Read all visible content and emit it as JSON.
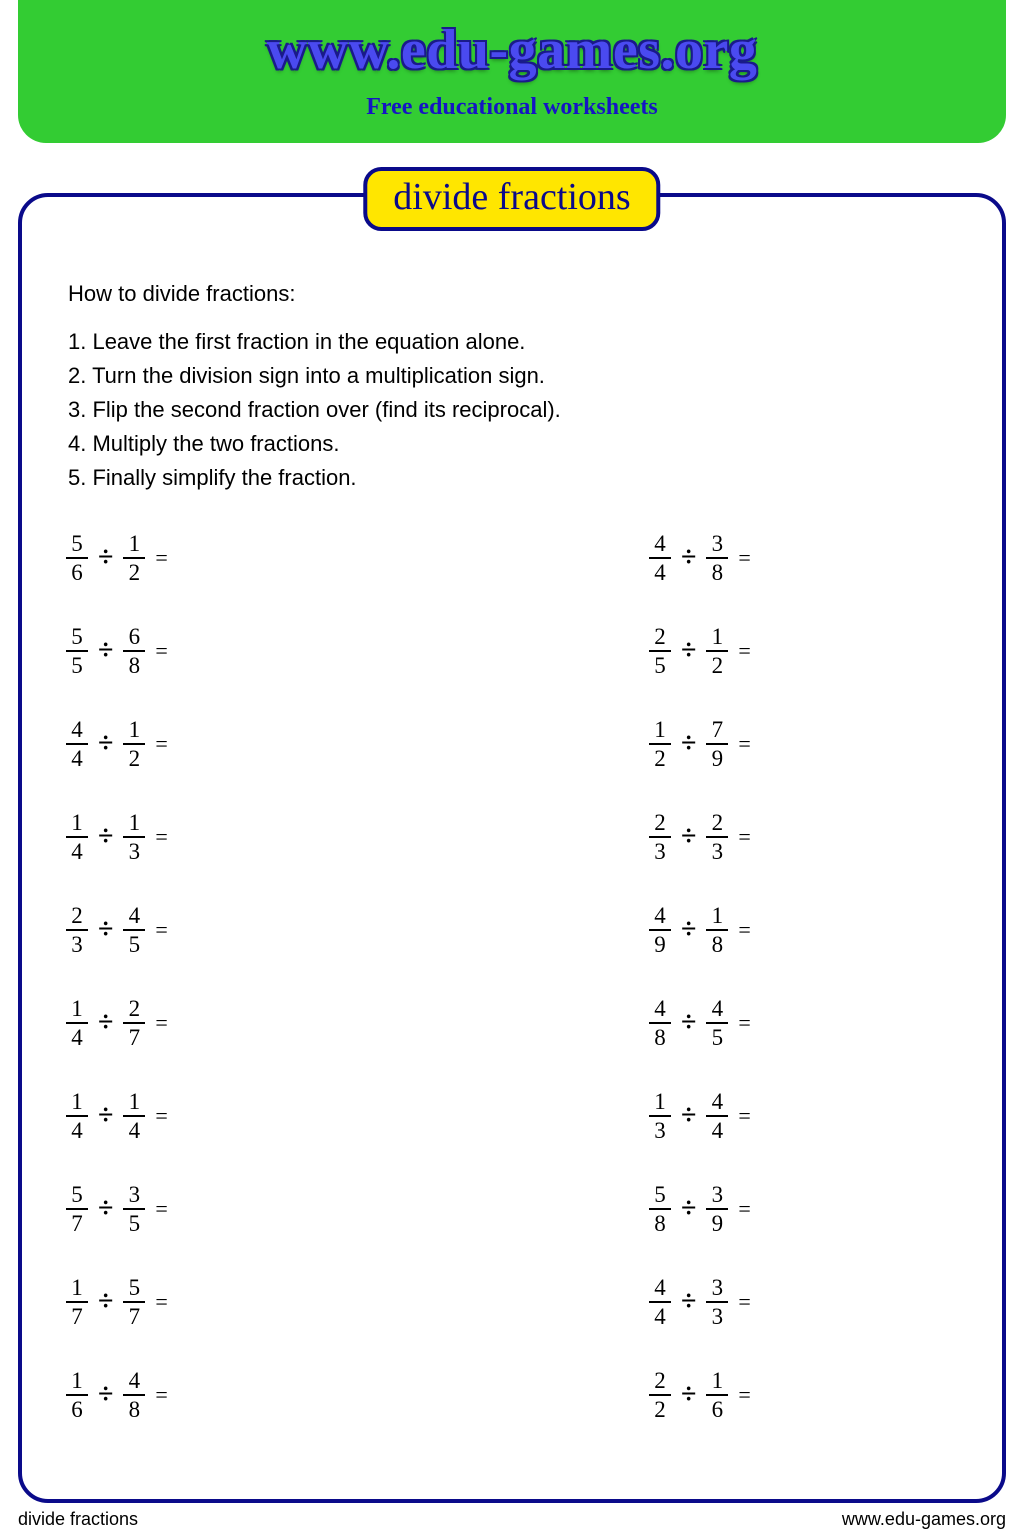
{
  "header": {
    "url": "www.edu-games.org",
    "subtitle": "Free educational worksheets",
    "bg_color": "#33cc33",
    "url_color": "#4a4af0",
    "sub_color": "#1515c4"
  },
  "worksheet": {
    "title": "divide fractions",
    "title_bg": "#ffe600",
    "border_color": "#0a0a8a",
    "instructions_heading": "How to divide fractions:",
    "instructions": [
      "1. Leave the first fraction in the equation alone.",
      "2. Turn the division sign into a multiplication sign.",
      "3. Flip the second fraction over (find its reciprocal).",
      "4. Multiply the two fractions.",
      "5. Finally simplify the fraction."
    ],
    "operator": "÷",
    "equals": "=",
    "problems_left": [
      {
        "a_num": "5",
        "a_den": "6",
        "b_num": "1",
        "b_den": "2"
      },
      {
        "a_num": "5",
        "a_den": "5",
        "b_num": "6",
        "b_den": "8"
      },
      {
        "a_num": "4",
        "a_den": "4",
        "b_num": "1",
        "b_den": "2"
      },
      {
        "a_num": "1",
        "a_den": "4",
        "b_num": "1",
        "b_den": "3"
      },
      {
        "a_num": "2",
        "a_den": "3",
        "b_num": "4",
        "b_den": "5"
      },
      {
        "a_num": "1",
        "a_den": "4",
        "b_num": "2",
        "b_den": "7"
      },
      {
        "a_num": "1",
        "a_den": "4",
        "b_num": "1",
        "b_den": "4"
      },
      {
        "a_num": "5",
        "a_den": "7",
        "b_num": "3",
        "b_den": "5"
      },
      {
        "a_num": "1",
        "a_den": "7",
        "b_num": "5",
        "b_den": "7"
      },
      {
        "a_num": "1",
        "a_den": "6",
        "b_num": "4",
        "b_den": "8"
      }
    ],
    "problems_right": [
      {
        "a_num": "4",
        "a_den": "4",
        "b_num": "3",
        "b_den": "8"
      },
      {
        "a_num": "2",
        "a_den": "5",
        "b_num": "1",
        "b_den": "2"
      },
      {
        "a_num": "1",
        "a_den": "2",
        "b_num": "7",
        "b_den": "9"
      },
      {
        "a_num": "2",
        "a_den": "3",
        "b_num": "2",
        "b_den": "3"
      },
      {
        "a_num": "4",
        "a_den": "9",
        "b_num": "1",
        "b_den": "8"
      },
      {
        "a_num": "4",
        "a_den": "8",
        "b_num": "4",
        "b_den": "5"
      },
      {
        "a_num": "1",
        "a_den": "3",
        "b_num": "4",
        "b_den": "4"
      },
      {
        "a_num": "5",
        "a_den": "8",
        "b_num": "3",
        "b_den": "9"
      },
      {
        "a_num": "4",
        "a_den": "4",
        "b_num": "3",
        "b_den": "3"
      },
      {
        "a_num": "2",
        "a_den": "2",
        "b_num": "1",
        "b_den": "6"
      }
    ]
  },
  "footer": {
    "left": "divide fractions",
    "right": "www.edu-games.org"
  }
}
